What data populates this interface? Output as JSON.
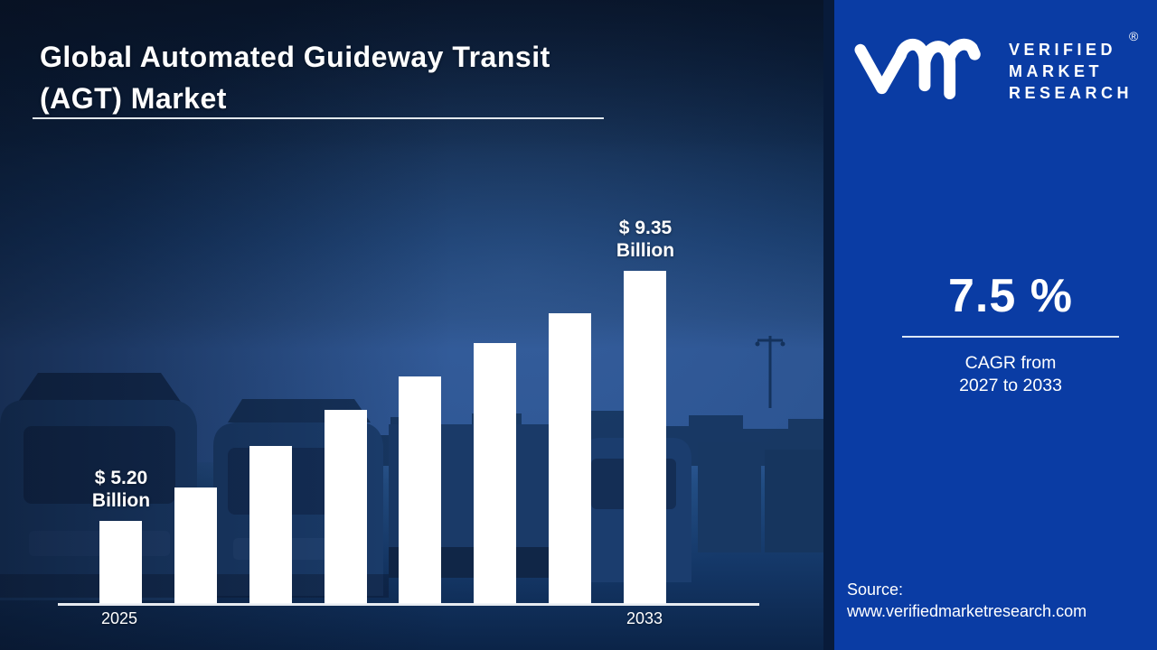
{
  "header": {
    "title_line1": "Global Automated Guideway Transit",
    "title_line2": "(AGT) Market"
  },
  "brand": {
    "monogram_icon": "vmr-monogram",
    "name_line1": "VERIFIED",
    "name_line2": "MARKET",
    "name_line3": "RESEARCH",
    "registered_mark": "®"
  },
  "kpi": {
    "value": "7.5 %",
    "caption_line1": "CAGR from",
    "caption_line2": "2027 to 2033"
  },
  "source": {
    "label": "Source:",
    "url": "www.verifiedmarketresearch.com"
  },
  "chart_data": {
    "type": "bar",
    "title": "Global Automated Guideway Transit (AGT) Market",
    "unit": "$ Billion",
    "categories": [
      "2025",
      "",
      "",
      "",
      "",
      "",
      "",
      "2033"
    ],
    "values": [
      5.2,
      5.75,
      6.45,
      7.05,
      7.6,
      8.15,
      8.65,
      9.35
    ],
    "endpoint_labels": {
      "first_line1": "$ 5.20",
      "first_line2": "Billion",
      "last_line1": "$ 9.35",
      "last_line2": "Billion"
    },
    "x_axis_labels_visible": [
      "2025",
      "2033"
    ],
    "y_axis": "hidden",
    "grid": "off",
    "legend": "none",
    "bar_color": "#ffffff"
  },
  "colors": {
    "right_panel": "#0a3ca4",
    "divider": "#081b3a",
    "bar": "#ffffff",
    "text": "#ffffff",
    "kpi_underline": "#dce7f5"
  }
}
